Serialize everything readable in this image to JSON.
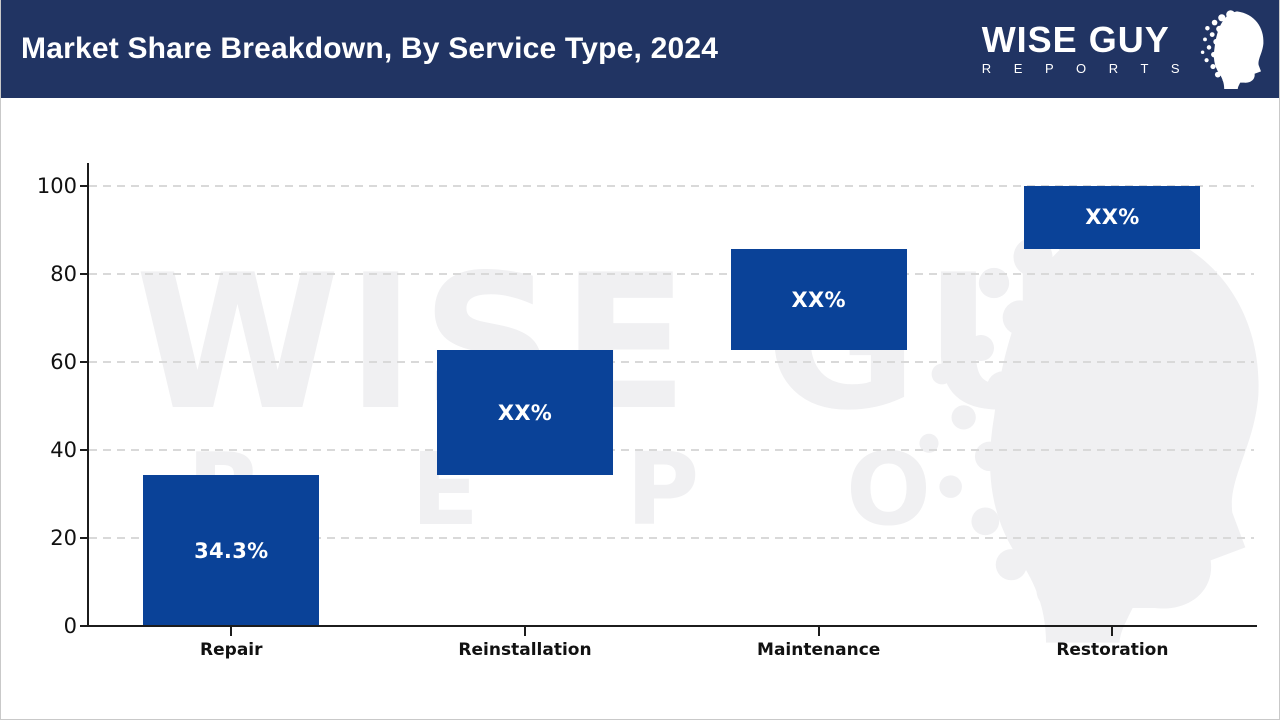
{
  "header": {
    "title": "Market Share Breakdown, By Service Type, 2024",
    "bg_color": "#213463",
    "logo": {
      "primary": "WISE GUY",
      "secondary": "R E P O R T S"
    }
  },
  "watermark": {
    "primary": "WISE GUY",
    "secondary": "R E P O R T S"
  },
  "chart_data": {
    "type": "bar",
    "variant": "floating-segment (waterfall-style cumulative breakdown)",
    "title": "Market Share Breakdown, By Service Type, 2024",
    "categories": [
      "Repair",
      "Reinstallation",
      "Maintenance",
      "Restoration"
    ],
    "bars": [
      {
        "category": "Repair",
        "start": 0,
        "end": 34.3,
        "size": 34.3,
        "label": "34.3%"
      },
      {
        "category": "Reinstallation",
        "start": 34.3,
        "end": 62.7,
        "size": 28.4,
        "label": "XX%"
      },
      {
        "category": "Maintenance",
        "start": 62.7,
        "end": 85.7,
        "size": 23.0,
        "label": "XX%"
      },
      {
        "category": "Restoration",
        "start": 85.7,
        "end": 100,
        "size": 14.3,
        "label": "XX%"
      }
    ],
    "xlabel": "",
    "ylabel": "",
    "ylim": [
      0,
      100
    ],
    "yticks": [
      0,
      20,
      40,
      60,
      80,
      100
    ],
    "grid": "horizontal dashed",
    "legend_position": "none",
    "colors": {
      "bar": "#0a4298",
      "bar_label": "#ffffff",
      "grid": "#d9d9d9",
      "axis": "#1c1c1c",
      "tick_label": "#111111",
      "header_bg": "#213463",
      "watermark": "#f0f0f2"
    }
  }
}
